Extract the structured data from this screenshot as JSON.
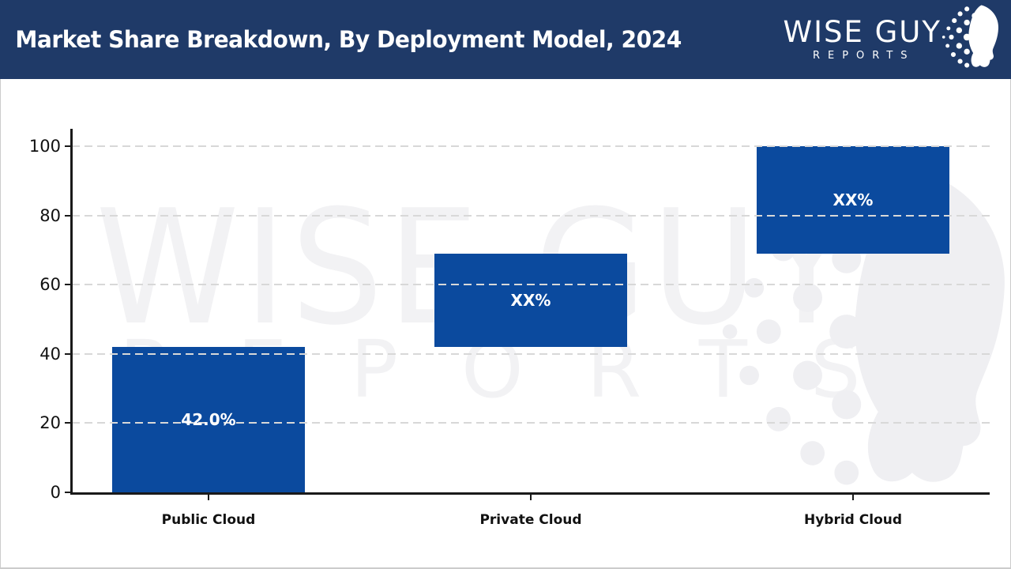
{
  "header": {
    "title": "Market Share Breakdown, By Deployment Model, 2024",
    "logo": {
      "wordmark": "WISE GUY",
      "subtext": "REPORTS"
    }
  },
  "watermark": {
    "wordmark": "WISE GUY",
    "subtext": "REPORTS"
  },
  "chart_data": {
    "type": "bar",
    "subtype": "stacked-waterfall",
    "title": "Market Share Breakdown, By Deployment Model, 2024",
    "categories": [
      "Public Cloud",
      "Private Cloud",
      "Hybrid Cloud"
    ],
    "segments": [
      {
        "category": "Public Cloud",
        "start": 0,
        "end": 42,
        "label": "42.0%"
      },
      {
        "category": "Private Cloud",
        "start": 42,
        "end": 69,
        "label": "XX%"
      },
      {
        "category": "Hybrid Cloud",
        "start": 69,
        "end": 100,
        "label": "XX%"
      }
    ],
    "yticks": [
      0,
      20,
      40,
      60,
      80,
      100
    ],
    "ylim": [
      0,
      105
    ],
    "grid": "horizontal-dashed",
    "legend": "none",
    "bar_color": "#0b4a9e",
    "bar_label_color": "#ffffff"
  },
  "colors": {
    "header_bg": "#1f3a68",
    "bar": "#0b4a9e",
    "grid": "#d8d8d8",
    "axis": "#1a1a1a",
    "watermark": "#f2f2f4",
    "border": "#cccccc"
  }
}
